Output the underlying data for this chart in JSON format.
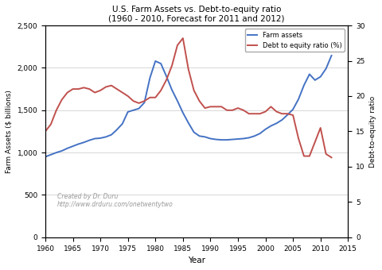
{
  "title_line1": "U.S. Farm Assets vs. Debt-to-equity ratio",
  "title_line2": "(1960 - 2010, Forecast for 2011 and 2012)",
  "xlabel": "Year",
  "ylabel_left": "Farm Assets ($ billions)",
  "ylabel_right": "Debt-to-equity ratio",
  "annotation": "Created by Dr. Duru\nhttp://www.drduru.com/onetwentytwo",
  "farm_assets_color": "#4472C4",
  "debt_equity_color": "#C0504D",
  "legend_farm": "Farm assets",
  "legend_debt": "Debt to equity ratio (%)",
  "years": [
    1960,
    1961,
    1962,
    1963,
    1964,
    1965,
    1966,
    1967,
    1968,
    1969,
    1970,
    1971,
    1972,
    1973,
    1974,
    1975,
    1976,
    1977,
    1978,
    1979,
    1980,
    1981,
    1982,
    1983,
    1984,
    1985,
    1986,
    1987,
    1988,
    1989,
    1990,
    1991,
    1992,
    1993,
    1994,
    1995,
    1996,
    1997,
    1998,
    1999,
    2000,
    2001,
    2002,
    2003,
    2004,
    2005,
    2006,
    2007,
    2008,
    2009,
    2010,
    2011,
    2012
  ],
  "farm_assets": [
    950,
    975,
    1000,
    1020,
    1050,
    1075,
    1100,
    1120,
    1145,
    1165,
    1170,
    1185,
    1210,
    1270,
    1340,
    1480,
    1500,
    1520,
    1590,
    1880,
    2080,
    2050,
    1900,
    1740,
    1610,
    1470,
    1350,
    1240,
    1195,
    1185,
    1165,
    1155,
    1150,
    1150,
    1155,
    1160,
    1165,
    1175,
    1195,
    1225,
    1275,
    1315,
    1345,
    1385,
    1445,
    1510,
    1630,
    1795,
    1925,
    1855,
    1895,
    1990,
    2145
  ],
  "debt_equity": [
    15.0,
    16.0,
    18.0,
    19.5,
    20.5,
    21.0,
    21.0,
    21.2,
    21.0,
    20.5,
    20.8,
    21.3,
    21.5,
    21.0,
    20.5,
    20.0,
    19.3,
    19.0,
    19.3,
    19.8,
    19.8,
    20.8,
    22.3,
    24.3,
    27.2,
    28.2,
    23.8,
    20.8,
    19.3,
    18.3,
    18.5,
    18.5,
    18.5,
    18.0,
    18.0,
    18.3,
    18.0,
    17.5,
    17.5,
    17.5,
    17.8,
    18.5,
    17.8,
    17.5,
    17.5,
    17.3,
    14.0,
    11.5,
    11.5,
    13.5,
    15.5,
    11.8,
    11.3
  ],
  "ylim_left": [
    0,
    2500
  ],
  "ylim_right": [
    0,
    30
  ],
  "xlim": [
    1960,
    2015
  ],
  "yticks_left": [
    0,
    500,
    1000,
    1500,
    2000,
    2500
  ],
  "yticks_right": [
    0,
    5,
    10,
    15,
    20,
    25,
    30
  ],
  "xticks": [
    1960,
    1965,
    1970,
    1975,
    1980,
    1985,
    1990,
    1995,
    2000,
    2005,
    2010,
    2015
  ],
  "bg_color": "#ffffff",
  "grid_color": "#d0d0d0"
}
